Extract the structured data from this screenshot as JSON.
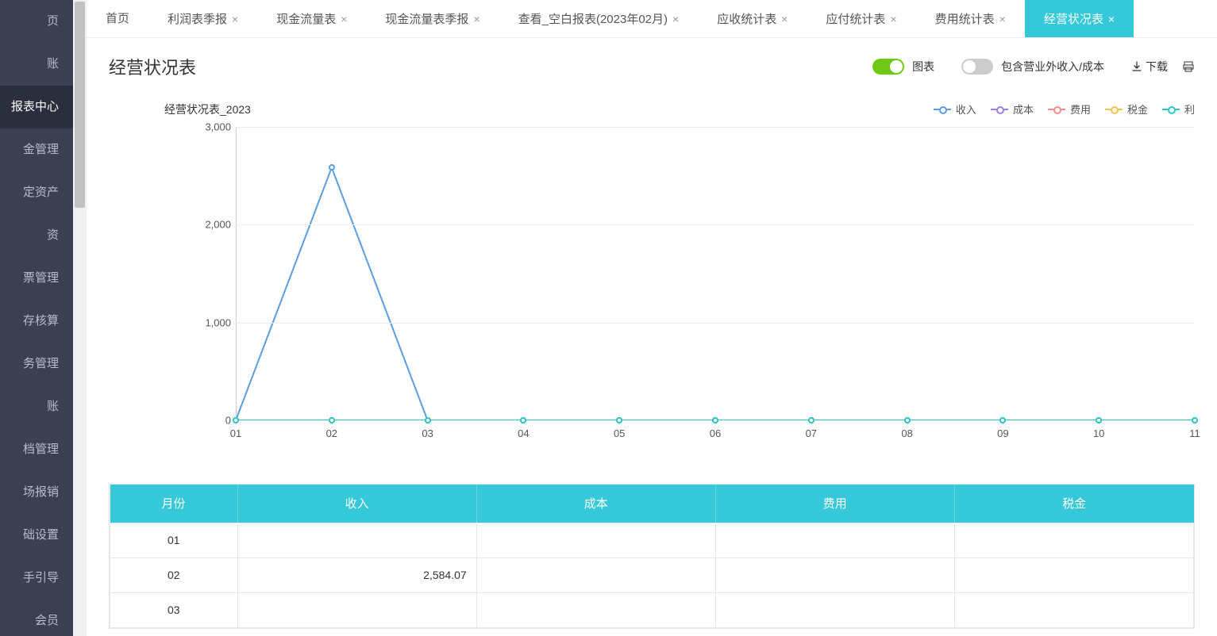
{
  "sidebar": {
    "items": [
      {
        "label": "页",
        "id": "home"
      },
      {
        "label": "账",
        "id": "acct1"
      },
      {
        "label": "报表中心",
        "id": "reports",
        "active": true
      },
      {
        "label": "金管理",
        "id": "cash"
      },
      {
        "label": "定资产",
        "id": "assets"
      },
      {
        "label": "资",
        "id": "salary"
      },
      {
        "label": "票管理",
        "id": "invoice"
      },
      {
        "label": "存核算",
        "id": "inventory"
      },
      {
        "label": "务管理",
        "id": "tax"
      },
      {
        "label": "账",
        "id": "acct2"
      },
      {
        "label": "档管理",
        "id": "archive"
      },
      {
        "label": "场报销",
        "id": "expense"
      },
      {
        "label": "础设置",
        "id": "settings"
      },
      {
        "label": "手引导",
        "id": "guide"
      },
      {
        "label": "会员",
        "id": "vip"
      }
    ]
  },
  "tabs": [
    {
      "label": "首页",
      "closable": false
    },
    {
      "label": "利润表季报",
      "closable": true
    },
    {
      "label": "现金流量表",
      "closable": true
    },
    {
      "label": "现金流量表季报",
      "closable": true
    },
    {
      "label": "查看_空白报表(2023年02月)",
      "closable": true
    },
    {
      "label": "应收统计表",
      "closable": true
    },
    {
      "label": "应付统计表",
      "closable": true
    },
    {
      "label": "费用统计表",
      "closable": true
    },
    {
      "label": "经营状况表",
      "closable": true,
      "active": true
    }
  ],
  "page": {
    "title": "经营状况表",
    "toggles": [
      {
        "id": "chart-toggle",
        "label": "图表",
        "on": true
      },
      {
        "id": "include-nonop",
        "label": "包含营业外收入/成本",
        "on": false
      }
    ],
    "download_label": "下载"
  },
  "chart": {
    "type": "line",
    "title": "经营状况表_2023",
    "x_categories": [
      "01",
      "02",
      "03",
      "04",
      "05",
      "06",
      "07",
      "08",
      "09",
      "10",
      "11"
    ],
    "ylim": [
      0,
      3000
    ],
    "yticks": [
      0,
      1000,
      2000,
      3000
    ],
    "ytick_labels": [
      "0",
      "1,000",
      "2,000",
      "3,000"
    ],
    "grid_color": "#eeeeee",
    "axis_color": "#cccccc",
    "background_color": "#ffffff",
    "series": [
      {
        "name": "收入",
        "color": "#5a9ce6",
        "values": [
          0,
          2584.07,
          0,
          0,
          0,
          0,
          0,
          0,
          0,
          0,
          0
        ]
      },
      {
        "name": "成本",
        "color": "#9b7fe6",
        "values": [
          0,
          0,
          0,
          0,
          0,
          0,
          0,
          0,
          0,
          0,
          0
        ]
      },
      {
        "name": "费用",
        "color": "#f58b8b",
        "values": [
          0,
          0,
          0,
          0,
          0,
          0,
          0,
          0,
          0,
          0,
          0
        ]
      },
      {
        "name": "税金",
        "color": "#f2c14e",
        "values": [
          0,
          0,
          0,
          0,
          0,
          0,
          0,
          0,
          0,
          0,
          0
        ]
      },
      {
        "name": "利",
        "color": "#2ec7c9",
        "values": [
          0,
          0,
          0,
          0,
          0,
          0,
          0,
          0,
          0,
          0,
          0
        ]
      }
    ],
    "marker_radius": 4,
    "line_width": 2
  },
  "table": {
    "columns": [
      "月份",
      "收入",
      "成本",
      "费用",
      "税金"
    ],
    "col_widths": [
      "160px",
      "300px",
      "300px",
      "300px",
      "300px"
    ],
    "rows": [
      {
        "month": "01",
        "income": "",
        "cost": "",
        "expense": "",
        "tax": ""
      },
      {
        "month": "02",
        "income": "2,584.07",
        "cost": "",
        "expense": "",
        "tax": ""
      },
      {
        "month": "03",
        "income": "",
        "cost": "",
        "expense": "",
        "tax": ""
      }
    ]
  }
}
